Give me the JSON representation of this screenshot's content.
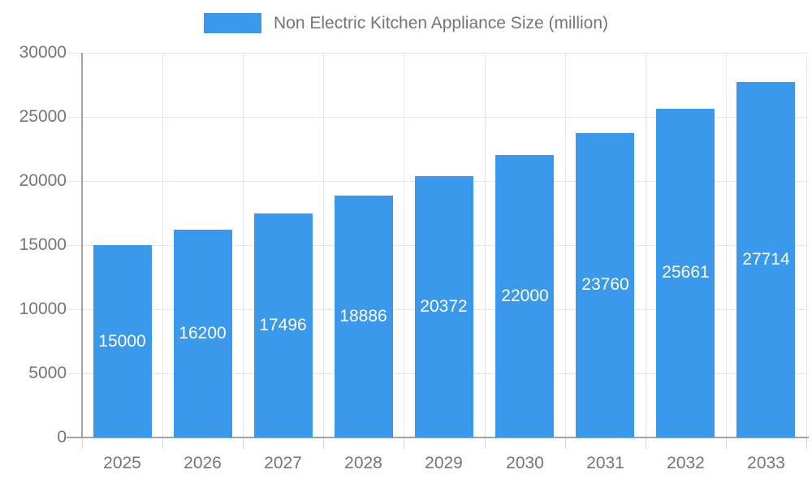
{
  "chart_data": {
    "type": "bar",
    "title": "",
    "legend": {
      "label": "Non Electric Kitchen Appliance Size (million)",
      "position": "top-center"
    },
    "categories": [
      "2025",
      "2026",
      "2027",
      "2028",
      "2029",
      "2030",
      "2031",
      "2032",
      "2033"
    ],
    "series": [
      {
        "name": "Non Electric Kitchen Appliance Size (million)",
        "values": [
          15000,
          16200,
          17496,
          18886,
          20372,
          22000,
          23760,
          25661,
          27714
        ]
      }
    ],
    "value_labels": [
      "15000",
      "16200",
      "17496",
      "18886",
      "20372",
      "22000",
      "23760",
      "25661",
      "27714"
    ],
    "xlabel": "",
    "ylabel": "",
    "ylim": [
      0,
      30000
    ],
    "yticks": [
      0,
      5000,
      10000,
      15000,
      20000,
      25000,
      30000
    ],
    "ytick_labels": [
      "0",
      "5000",
      "10000",
      "15000",
      "20000",
      "25000",
      "30000"
    ],
    "grid": "horizontal-and-vertical",
    "value_label_position": "inside-center",
    "colors": {
      "bar": "#3B99EC",
      "grid": "#E6E6E6",
      "axis": "#A3A3A3",
      "tick": "#D5D5D5",
      "tick_label": "#757575",
      "legend_text": "#757575",
      "bar_label": "#FFFFFF",
      "background": "#FFFFFF"
    }
  }
}
